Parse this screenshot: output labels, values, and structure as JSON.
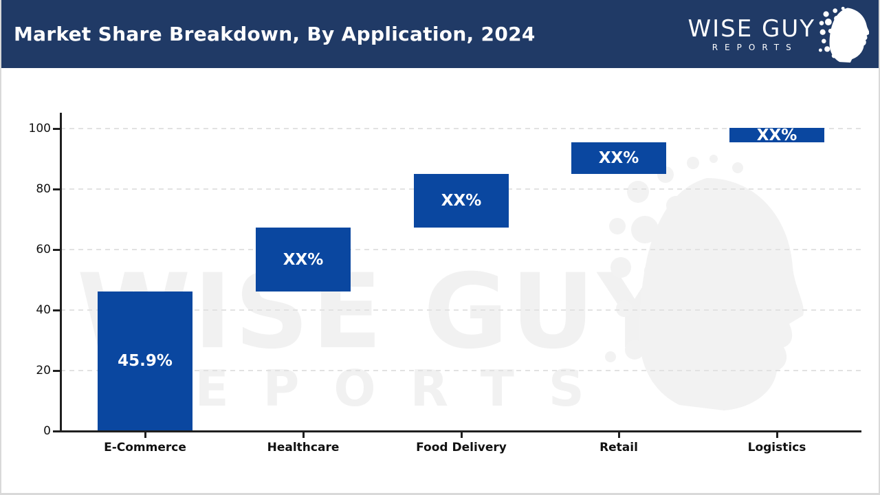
{
  "header": {
    "title": "Market Share Breakdown, By Application, 2024",
    "logo": {
      "line1": "WISE GUY",
      "line2": "REPORTS"
    }
  },
  "watermark": {
    "line1": "WISE GUY",
    "line2": "REPORTS"
  },
  "chart_data": {
    "type": "bar",
    "subtype": "waterfall-stacked",
    "title": "Market Share Breakdown, By Application, 2024",
    "categories": [
      "E-Commerce",
      "Healthcare",
      "Food Delivery",
      "Retail",
      "Logistics"
    ],
    "segments": [
      {
        "category": "E-Commerce",
        "start": 0,
        "end": 45.9,
        "label": "45.9%"
      },
      {
        "category": "Healthcare",
        "start": 45.9,
        "end": 67.0,
        "label": "XX%"
      },
      {
        "category": "Food Delivery",
        "start": 67.0,
        "end": 84.8,
        "label": "XX%"
      },
      {
        "category": "Retail",
        "start": 84.8,
        "end": 95.2,
        "label": "XX%"
      },
      {
        "category": "Logistics",
        "start": 95.2,
        "end": 100.0,
        "label": "XX%"
      }
    ],
    "shown_value": "45.9%",
    "masked_value": "XX%",
    "yticks": [
      0,
      20,
      40,
      60,
      80,
      100
    ],
    "ylim": [
      0,
      105
    ],
    "grid": "horizontal-dashed",
    "legend": "none",
    "bar_color": "#0a47a0",
    "label_color": "#ffffff"
  },
  "colors": {
    "header_bg": "#203a66",
    "bar": "#0a47a0",
    "axis": "#1f1f1f",
    "gridline": "#e2e2e2",
    "watermark": "#f1f1f1",
    "page_border": "#d9d9d9",
    "title_text": "#ffffff"
  }
}
